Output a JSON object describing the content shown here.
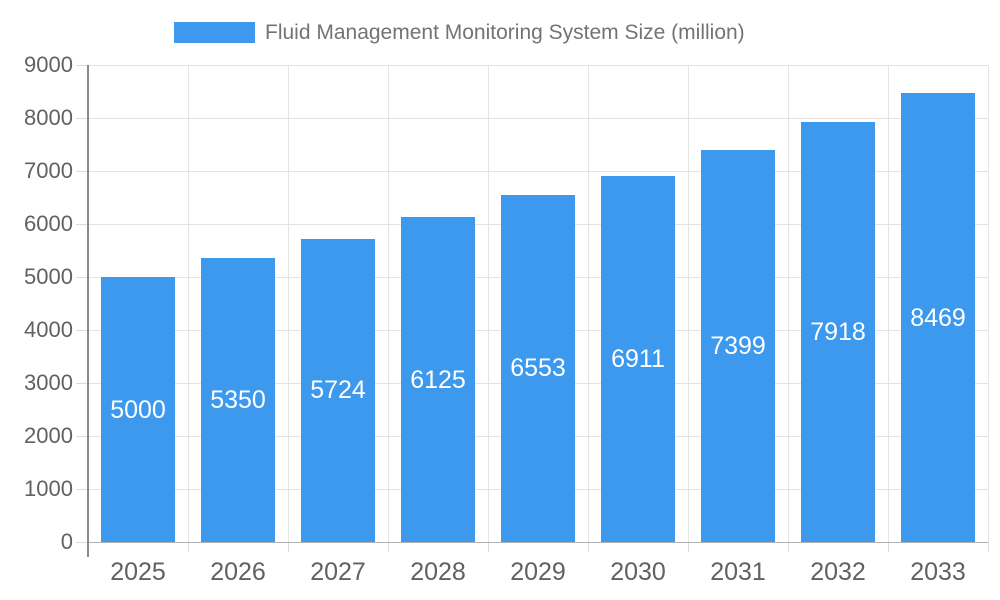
{
  "chart_data": {
    "type": "bar",
    "title": "Fluid Management Monitoring System Size (million)",
    "legend": {
      "label": "Fluid Management Monitoring System Size (million)",
      "position": "top"
    },
    "categories": [
      "2025",
      "2026",
      "2027",
      "2028",
      "2029",
      "2030",
      "2031",
      "2032",
      "2033"
    ],
    "series": [
      {
        "name": "Fluid Management Monitoring System Size (million)",
        "values": [
          5000,
          5350,
          5724,
          6125,
          6553,
          6911,
          7399,
          7918,
          8469
        ]
      }
    ],
    "bar_value_labels": [
      "5000",
      "5350",
      "5724",
      "6125",
      "6553",
      "6911",
      "7399",
      "7918",
      "8469"
    ],
    "xlabel": "",
    "ylabel": "",
    "ylim": [
      0,
      9000
    ],
    "yticks": [
      0,
      1000,
      2000,
      3000,
      4000,
      5000,
      6000,
      7000,
      8000,
      9000
    ],
    "grid": true
  },
  "colors": {
    "bar": "#3C99EE",
    "bar_value_label": "#FFFFFF",
    "axis_tick_label": "#616161",
    "legend_text": "#737373",
    "gridline": "#E4E4E4",
    "tick_stub": "#DADADA",
    "baseline": "#B0B0B0",
    "y_axis_line": "#8A8A8A",
    "background": "#FFFFFF"
  }
}
